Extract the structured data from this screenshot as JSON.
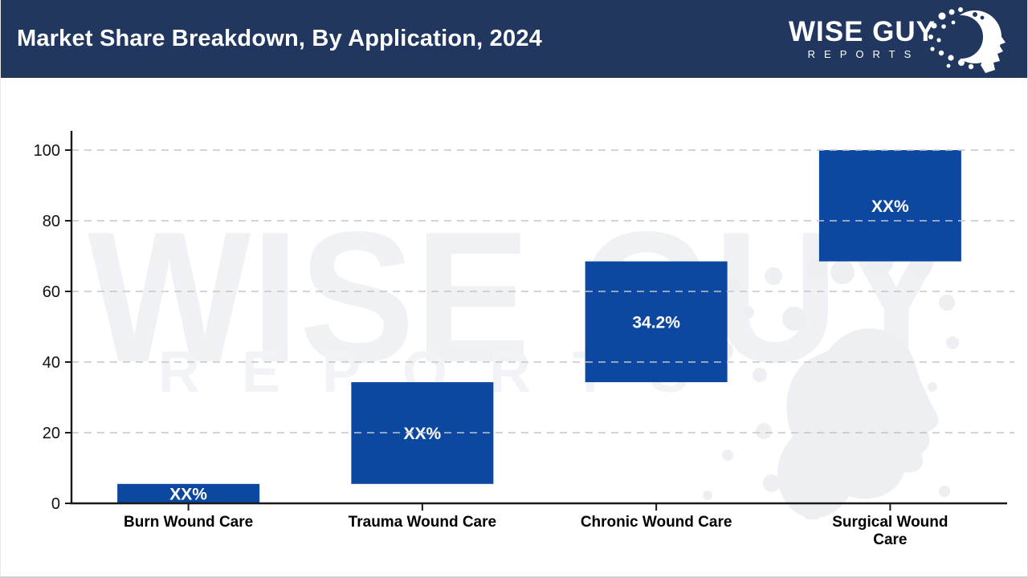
{
  "header": {
    "title": "Market Share Breakdown, By Application, 2024",
    "logo": {
      "brand": "WISE GUY",
      "sub": "REPORTS",
      "icon": "head-profile-dots-icon"
    }
  },
  "watermark": {
    "brand": "WISE GUY",
    "sub": "REPORTS"
  },
  "chart_data": {
    "type": "bar",
    "variant": "floating-waterfall",
    "title": "Market Share Breakdown, By Application, 2024",
    "categories": [
      "Burn Wound Care",
      "Trauma Wound Care",
      "Chronic Wound Care",
      "Surgical Wound Care"
    ],
    "series": [
      {
        "name": "Market share (%)",
        "segments": [
          {
            "category": "Burn Wound Care",
            "start": 0,
            "end": 5.5,
            "label": "XX%"
          },
          {
            "category": "Trauma Wound Care",
            "start": 5.5,
            "end": 34.3,
            "label": "XX%"
          },
          {
            "category": "Chronic Wound Care",
            "start": 34.3,
            "end": 68.5,
            "label": "34.2%"
          },
          {
            "category": "Surgical Wound Care",
            "start": 68.5,
            "end": 100,
            "label": "XX%"
          }
        ]
      }
    ],
    "xlabel": "",
    "ylabel": "",
    "ylim": [
      0,
      100
    ],
    "yticks": [
      0,
      20,
      40,
      60,
      80,
      100
    ],
    "grid": "horizontal-dashed",
    "legend": "none",
    "bar_color": "#0d48a0",
    "bar_label_color": "#ffffff",
    "axis_color": "#1a1a1a",
    "grid_color": "#c6c6c6",
    "tick_text_color": "#111111"
  }
}
